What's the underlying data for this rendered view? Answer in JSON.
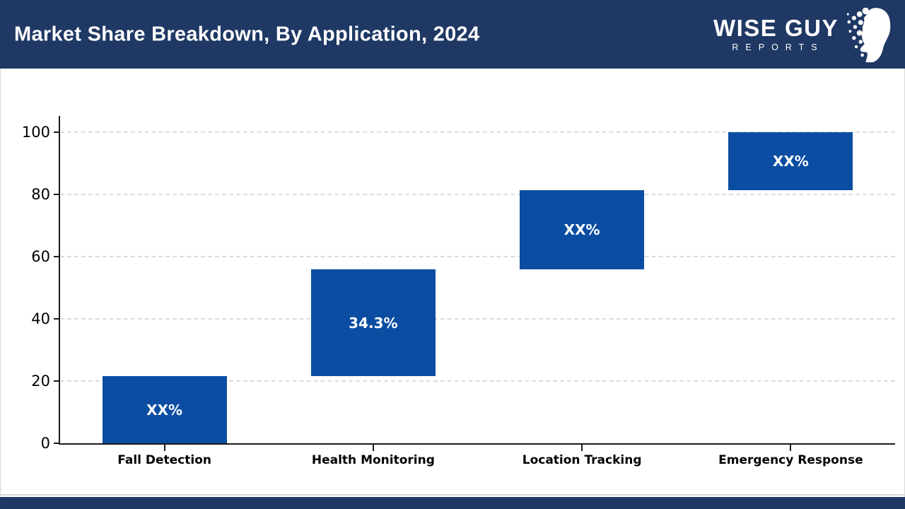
{
  "header": {
    "title": "Market Share Breakdown, By Application, 2024",
    "logo": {
      "name_line": "WISE GUY",
      "sub_line": "REPORTS",
      "face_icon": "dotted-face-profile"
    }
  },
  "watermark": {
    "name_line": "WISE GUY",
    "sub_line": "REPORTS",
    "face_icon": "dotted-face-profile"
  },
  "chart_data": {
    "type": "bar",
    "subtype": "waterfall",
    "title": "Market Share Breakdown, By Application, 2024",
    "categories": [
      "Fall Detection",
      "Health Monitoring",
      "Location Tracking",
      "Emergency Response"
    ],
    "series": [
      {
        "name": "Market share (%)",
        "segments": [
          {
            "category": "Fall Detection",
            "start": 0,
            "end": 21.5,
            "label": "XX%"
          },
          {
            "category": "Health Monitoring",
            "start": 21.5,
            "end": 55.8,
            "label": "34.3%"
          },
          {
            "category": "Location Tracking",
            "start": 55.8,
            "end": 81.4,
            "label": "XX%"
          },
          {
            "category": "Emergency Response",
            "start": 81.4,
            "end": 100,
            "label": "XX%"
          }
        ]
      }
    ],
    "xlabel": "",
    "ylabel": "",
    "ylim": [
      0,
      100
    ],
    "yticks": [
      0,
      20,
      40,
      60,
      80,
      100
    ],
    "grid": "horizontal-dashed",
    "legend": "none"
  },
  "colors": {
    "header_bg": "#1f3864",
    "footer_bg": "#1f3864",
    "bar": "#0b4da2",
    "bar_label": "#ffffff",
    "watermark": "#f0f0f1",
    "grid": "#dcdcdc",
    "axis": "#1a1a1a",
    "card_border": "#d9d9d9"
  }
}
